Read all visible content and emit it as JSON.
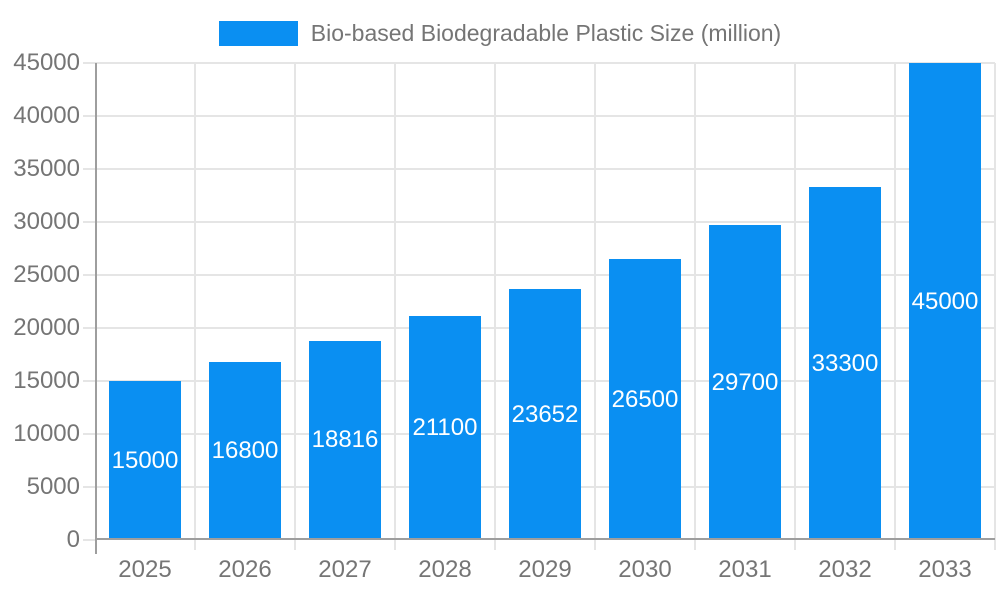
{
  "legend": {
    "label": "Bio-based Biodegradable Plastic Size (million)"
  },
  "chart_data": {
    "type": "bar",
    "title": "Bio-based Biodegradable Plastic Size (million)",
    "categories": [
      "2025",
      "2026",
      "2027",
      "2028",
      "2029",
      "2030",
      "2031",
      "2032",
      "2033"
    ],
    "values": [
      15000,
      16800,
      18816,
      21100,
      23652,
      26500,
      29700,
      33300,
      45000
    ],
    "series": [
      {
        "name": "Bio-based Biodegradable Plastic Size (million)",
        "values": [
          15000,
          16800,
          18816,
          21100,
          23652,
          26500,
          29700,
          33300,
          45000
        ]
      }
    ],
    "xlabel": "",
    "ylabel": "",
    "ylim": [
      0,
      45000
    ],
    "ytick_step": 5000,
    "ytick_labels": [
      "0",
      "5000",
      "10000",
      "15000",
      "20000",
      "25000",
      "30000",
      "35000",
      "40000",
      "45000"
    ],
    "grid": true,
    "legend_position": "top-center",
    "value_label_position": "inside-center",
    "colors": {
      "bar": "#0a8ff2",
      "grid": "#e5e5e5",
      "axis": "#9e9e9e",
      "tick_label": "#757575",
      "value_label": "#ffffff",
      "background": "#ffffff"
    }
  }
}
